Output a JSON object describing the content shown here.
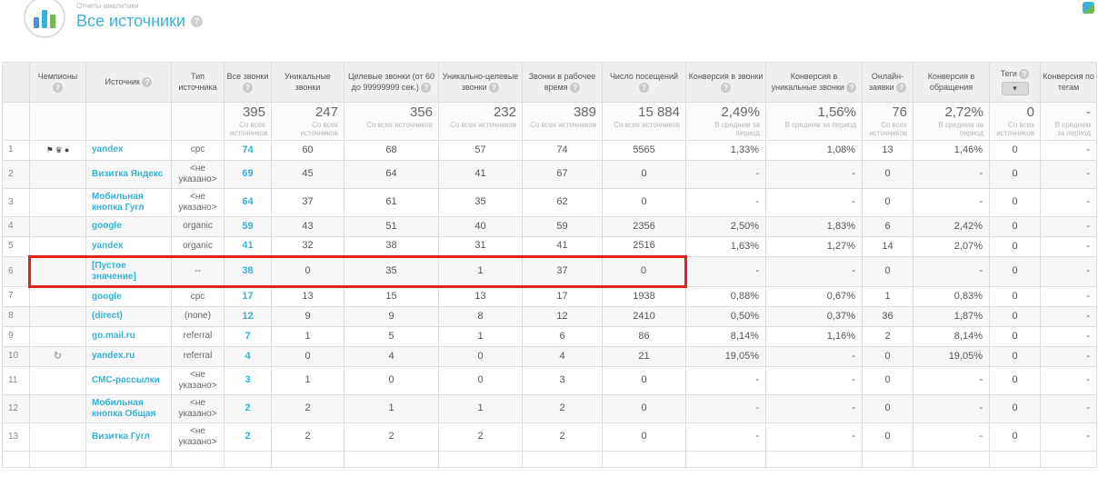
{
  "page": {
    "breadcrumb": "Отчеты аналитики",
    "title": "Все источники"
  },
  "colors": {
    "accent": "#35b2d5",
    "logo_blue": "#4a90d2",
    "logo_green": "#6cc04a",
    "highlight_frame": "#e2231a"
  },
  "table": {
    "columns": [
      {
        "label": "Чемпионы"
      },
      {
        "label": "Источник"
      },
      {
        "label": "Тип источника"
      },
      {
        "label": "Все звонки"
      },
      {
        "label": "Уникальные звонки"
      },
      {
        "label": "Целевые звонки (от 60 до 99999999 сек.)"
      },
      {
        "label": "Уникально-целевые звонки"
      },
      {
        "label": "Звонки в рабочее время"
      },
      {
        "label": "Число посещений"
      },
      {
        "label": "Конверсия в звонки"
      },
      {
        "label": "Конверсия в уникальные звонки"
      },
      {
        "label": "Онлайн-заявки"
      },
      {
        "label": "Конверсия в обращения"
      },
      {
        "label": "Теги"
      },
      {
        "label": "Конверсия по тегам"
      }
    ],
    "summary": [
      {
        "value": "395",
        "caption": "Со всех источников"
      },
      {
        "value": "247",
        "caption": "Со всех источников"
      },
      {
        "value": "356",
        "caption": "Со всех источников"
      },
      {
        "value": "232",
        "caption": "Со всех источников"
      },
      {
        "value": "389",
        "caption": "Со всех источников"
      },
      {
        "value": "15 884",
        "caption": "Со всех источников"
      },
      {
        "value": "2,49%",
        "caption": "В среднем за период"
      },
      {
        "value": "1,56%",
        "caption": "В среднем за период"
      },
      {
        "value": "76",
        "caption": "Со всех источников"
      },
      {
        "value": "2,72%",
        "caption": "В среднем за период"
      },
      {
        "value": "0",
        "caption": "Со всех источников"
      },
      {
        "value": "-",
        "caption": "В среднем за период"
      }
    ],
    "rows": [
      {
        "num": "1",
        "champions": [
          "bell-icon",
          "trophy-icon",
          "clock-icon"
        ],
        "source": "yandex",
        "type": "cpc",
        "cells": [
          "74",
          "60",
          "68",
          "57",
          "74",
          "5565",
          "1,33%",
          "1,08%",
          "13",
          "1,46%",
          "0",
          "-"
        ]
      },
      {
        "num": "2",
        "champions": [],
        "source": "Визитка Яндекс",
        "type": "<не указано>",
        "cells": [
          "69",
          "45",
          "64",
          "41",
          "67",
          "0",
          "-",
          "-",
          "0",
          "-",
          "0",
          "-"
        ]
      },
      {
        "num": "3",
        "champions": [],
        "source": "Мобильная кнопка Гугл",
        "type": "<не указано>",
        "cells": [
          "64",
          "37",
          "61",
          "35",
          "62",
          "0",
          "-",
          "-",
          "0",
          "-",
          "0",
          "-"
        ]
      },
      {
        "num": "4",
        "champions": [],
        "source": "google",
        "type": "organic",
        "cells": [
          "59",
          "43",
          "51",
          "40",
          "59",
          "2356",
          "2,50%",
          "1,83%",
          "6",
          "2,42%",
          "0",
          "-"
        ]
      },
      {
        "num": "5",
        "champions": [],
        "source": "yandex",
        "type": "organic",
        "cells": [
          "41",
          "32",
          "38",
          "31",
          "41",
          "2516",
          "1,63%",
          "1,27%",
          "14",
          "2,07%",
          "0",
          "-"
        ]
      },
      {
        "num": "6",
        "champions": [],
        "source": "[Пустое значение]",
        "type": "--",
        "highlight": true,
        "cells": [
          "38",
          "0",
          "35",
          "1",
          "37",
          "0",
          "-",
          "-",
          "0",
          "-",
          "0",
          "-"
        ]
      },
      {
        "num": "7",
        "champions": [],
        "source": "google",
        "type": "cpc",
        "cells": [
          "17",
          "13",
          "15",
          "13",
          "17",
          "1938",
          "0,88%",
          "0,67%",
          "1",
          "0,83%",
          "0",
          "-"
        ]
      },
      {
        "num": "8",
        "champions": [],
        "source": "(direct)",
        "type": "(none)",
        "cells": [
          "12",
          "9",
          "9",
          "8",
          "12",
          "2410",
          "0,50%",
          "0,37%",
          "36",
          "1,87%",
          "0",
          "-"
        ]
      },
      {
        "num": "9",
        "champions": [],
        "source": "go.mail.ru",
        "type": "referral",
        "cells": [
          "7",
          "1",
          "5",
          "1",
          "6",
          "86",
          "8,14%",
          "1,16%",
          "2",
          "8,14%",
          "0",
          "-"
        ]
      },
      {
        "num": "10",
        "champions": [
          "refresh-icon"
        ],
        "source": "yandex.ru",
        "type": "referral",
        "cells": [
          "4",
          "0",
          "4",
          "0",
          "4",
          "21",
          "19,05%",
          "-",
          "0",
          "19,05%",
          "0",
          "-"
        ]
      },
      {
        "num": "11",
        "champions": [],
        "source": "СМС-рассылки",
        "type": "<не указано>",
        "cells": [
          "3",
          "1",
          "0",
          "0",
          "3",
          "0",
          "-",
          "-",
          "0",
          "-",
          "0",
          "-"
        ]
      },
      {
        "num": "12",
        "champions": [],
        "source": "Мобильная кнопка Общая",
        "type": "<не указано>",
        "cells": [
          "2",
          "2",
          "1",
          "1",
          "2",
          "0",
          "-",
          "-",
          "0",
          "-",
          "0",
          "-"
        ]
      },
      {
        "num": "13",
        "champions": [],
        "source": "Визитка Гугл",
        "type": "<не указано>",
        "cells": [
          "2",
          "2",
          "2",
          "2",
          "2",
          "0",
          "-",
          "-",
          "0",
          "-",
          "0",
          "-"
        ]
      }
    ]
  }
}
